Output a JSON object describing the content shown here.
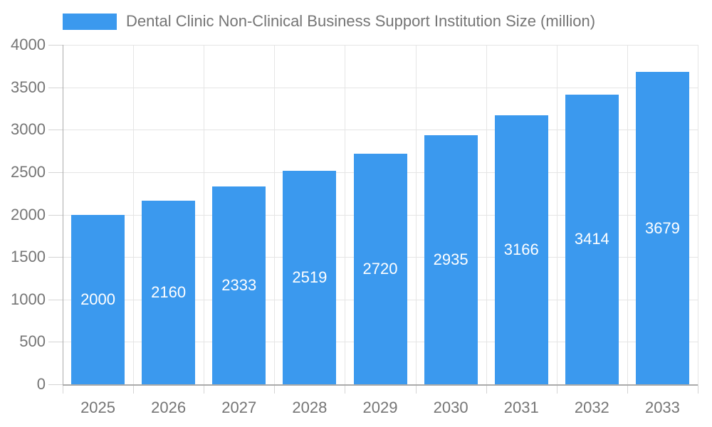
{
  "chart_data": {
    "type": "bar",
    "title": "Dental Clinic Non-Clinical Business Support Institution Size (million)",
    "categories": [
      "2025",
      "2026",
      "2027",
      "2028",
      "2029",
      "2030",
      "2031",
      "2032",
      "2033"
    ],
    "values": [
      2000,
      2160,
      2333,
      2519,
      2720,
      2935,
      3166,
      3414,
      3679
    ],
    "value_labels": [
      "2000",
      "2160",
      "2333",
      "2519",
      "2720",
      "2935",
      "3166",
      "3414",
      "3679"
    ],
    "xlabel": "",
    "ylabel": "",
    "ylim": [
      0,
      4000
    ],
    "yticks": [
      0,
      500,
      1000,
      1500,
      2000,
      2500,
      3000,
      3500,
      4000
    ],
    "grid": true,
    "legend_position": "top-center",
    "colors": {
      "bar": "#3B99EE",
      "value_label": "#ffffff",
      "axis_text": "#757575",
      "gridline": "#e5e5e5",
      "axis_line": "#aaaaaa",
      "tick": "#d4d4d4"
    }
  }
}
